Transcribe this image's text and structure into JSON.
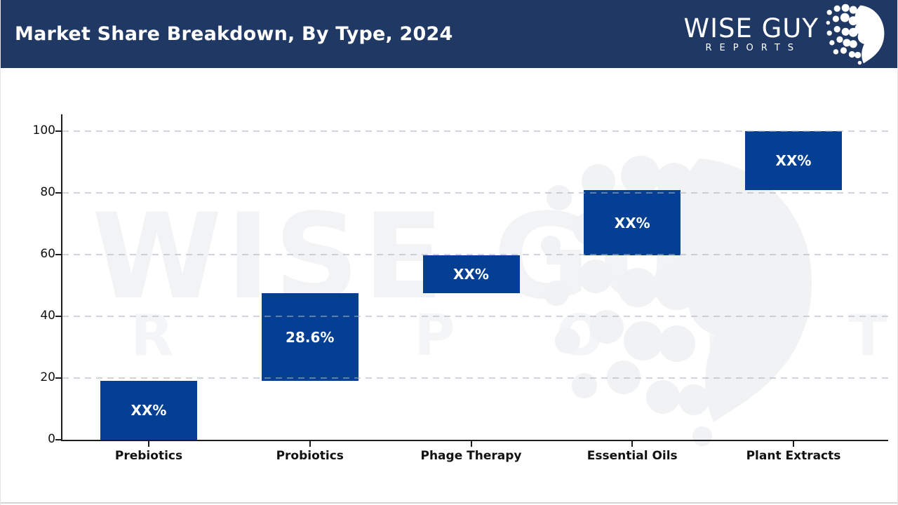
{
  "header": {
    "title": "Market Share Breakdown, By Type, 2024",
    "bg_color": "#203864",
    "logo": {
      "line1": "WISE GUY",
      "line2": "REPORTS"
    }
  },
  "watermark": {
    "line1": "WISE GUY",
    "line2": "REPORTS"
  },
  "chart_data": {
    "type": "bar",
    "subtype": "floating-waterfall",
    "title": "Market Share Breakdown, By Type, 2024",
    "categories": [
      "Prebiotics",
      "Probiotics",
      "Phage Therapy",
      "Essential Oils",
      "Plant Extracts"
    ],
    "segments": [
      {
        "category": "Prebiotics",
        "start": 0,
        "end": 19.0,
        "value": 19.0,
        "label": "XX%"
      },
      {
        "category": "Probiotics",
        "start": 19.0,
        "end": 47.6,
        "value": 28.6,
        "label": "28.6%"
      },
      {
        "category": "Phage Therapy",
        "start": 47.6,
        "end": 59.8,
        "value": 12.2,
        "label": "XX%"
      },
      {
        "category": "Essential Oils",
        "start": 59.8,
        "end": 80.9,
        "value": 21.1,
        "label": "XX%"
      },
      {
        "category": "Plant Extracts",
        "start": 80.9,
        "end": 100.0,
        "value": 19.1,
        "label": "XX%"
      }
    ],
    "bar_color": "#043f94",
    "bar_label_color": "#ffffff",
    "yticks": [
      0,
      20,
      40,
      60,
      80,
      100
    ],
    "ylim": [
      0,
      105.5
    ],
    "xlabel": "",
    "ylabel": "",
    "grid": "horizontal-dashed",
    "legend": "none"
  }
}
